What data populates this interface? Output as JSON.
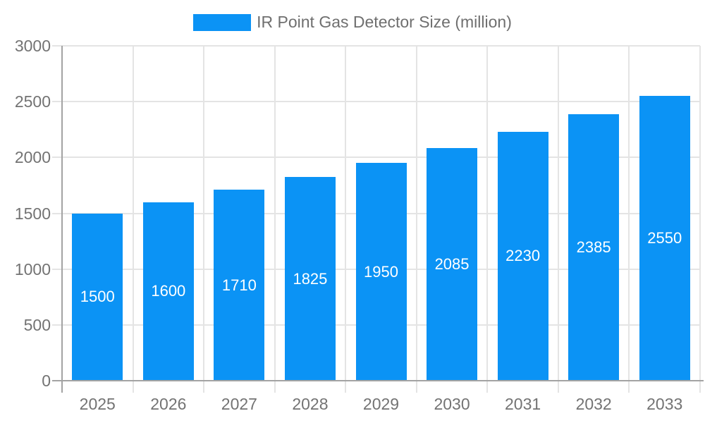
{
  "legend": {
    "position": "top",
    "label": "IR Point Gas Detector Size (million)"
  },
  "chart_data": {
    "type": "bar",
    "title": "IR Point Gas Detector Size (million)",
    "categories": [
      "2025",
      "2026",
      "2027",
      "2028",
      "2029",
      "2030",
      "2031",
      "2032",
      "2033"
    ],
    "series": [
      {
        "name": "IR Point Gas Detector Size (million)",
        "values": [
          1500,
          1600,
          1710,
          1825,
          1950,
          2085,
          2230,
          2385,
          2550
        ]
      }
    ],
    "xlabel": "",
    "ylabel": "",
    "ylim": [
      0,
      3000
    ],
    "yticks": [
      0,
      500,
      1000,
      1500,
      2000,
      2500,
      3000
    ],
    "grid": true,
    "legend_position": "top",
    "value_labels_position": "inside-center"
  },
  "colors": {
    "bar": "#0b93f5",
    "value_label": "#ffffff",
    "gridline": "#e4e4e4",
    "axis_line": "#a3a3a3",
    "tick_label": "#737373",
    "legend_text": "#6f6f6f",
    "background": "#ffffff"
  }
}
